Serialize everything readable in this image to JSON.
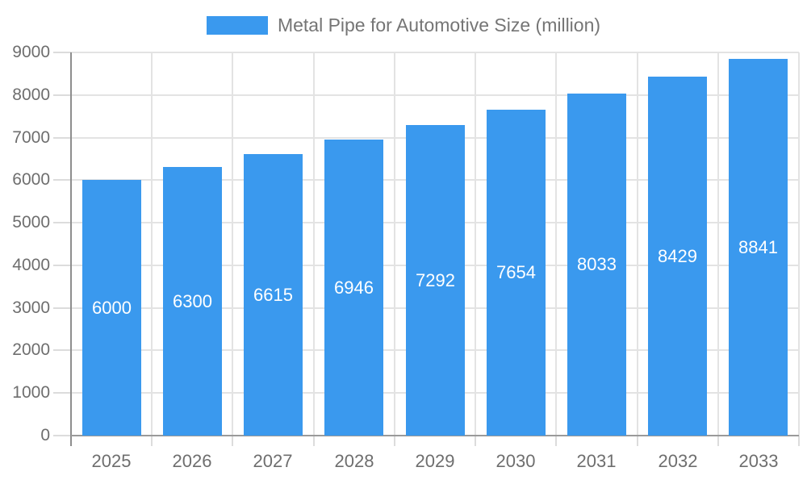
{
  "legend": {
    "label": "Metal Pipe for Automotive Size (million)",
    "swatch_color": "#3a99ee"
  },
  "chart_data": {
    "type": "bar",
    "title": "Metal Pipe for Automotive Size (million)",
    "categories": [
      "2025",
      "2026",
      "2027",
      "2028",
      "2029",
      "2030",
      "2031",
      "2032",
      "2033"
    ],
    "values": [
      6000,
      6300,
      6615,
      6946,
      7292,
      7654,
      8033,
      8429,
      8841
    ],
    "xlabel": "",
    "ylabel": "",
    "ylim": [
      0,
      9000
    ],
    "ytick_step": 1000,
    "yticks": [
      "0",
      "1000",
      "2000",
      "3000",
      "4000",
      "5000",
      "6000",
      "7000",
      "8000",
      "9000"
    ],
    "bar_color": "#3a99ee",
    "bar_label_color": "#ffffff",
    "grid": true,
    "legend_position": "top-center",
    "axis_text_color": "#6e6e6e",
    "grid_color": "#e3e3e3"
  }
}
